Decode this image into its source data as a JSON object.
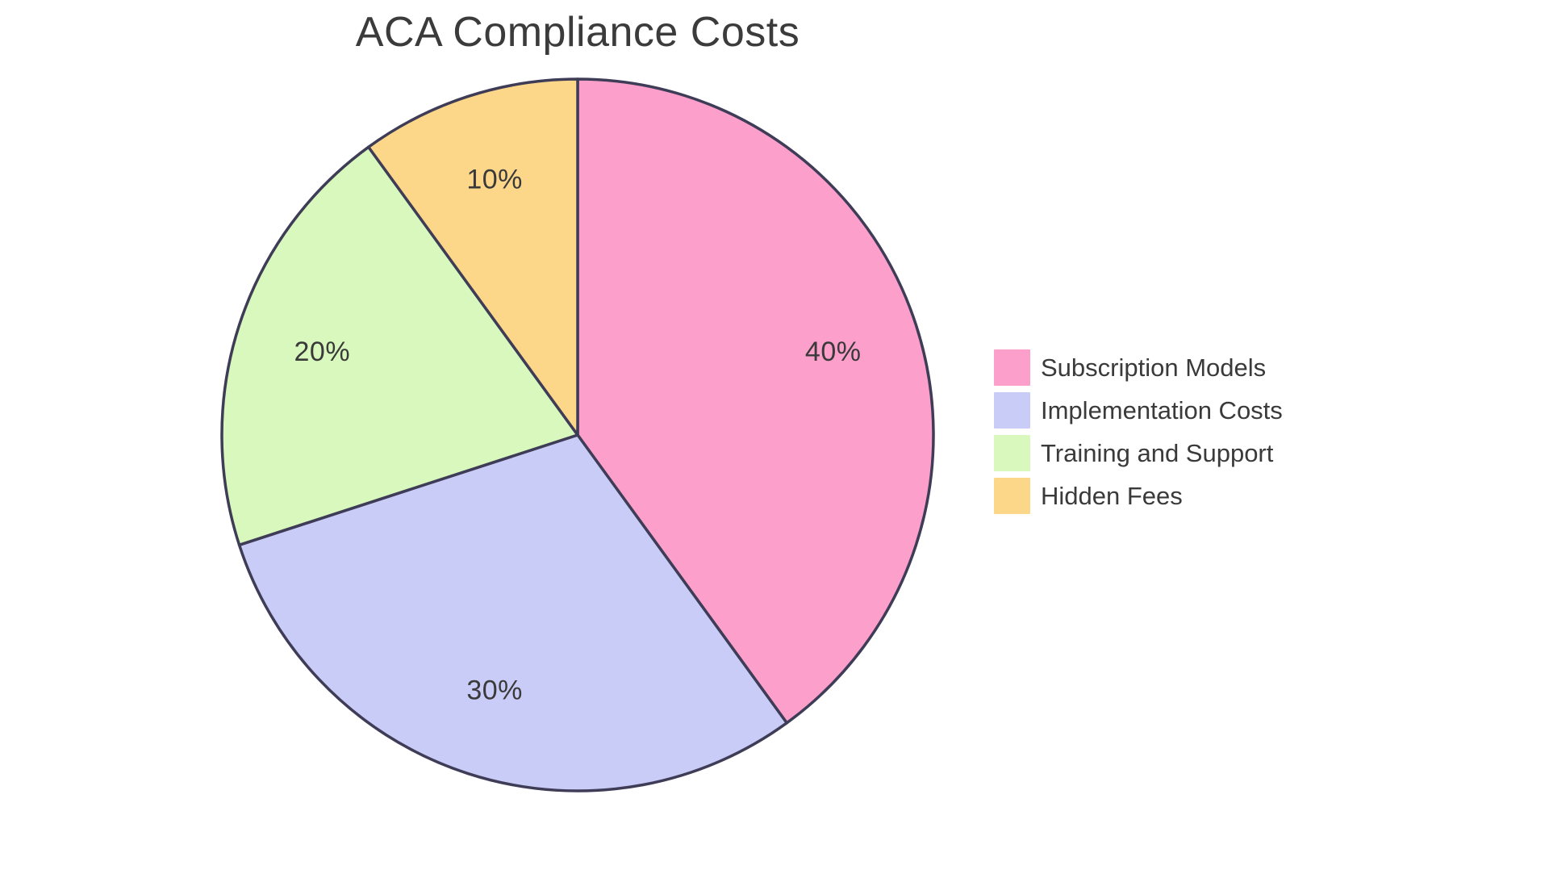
{
  "chart_data": {
    "type": "pie",
    "title": "ACA Compliance Costs",
    "legend_position": "right",
    "start_angle_deg": -90,
    "direction": "clockwise",
    "stroke_color": "#3e3c56",
    "label_color": "#3a3a3a",
    "title_color": "#3b3b3b",
    "background_color": "#ffffff",
    "slices": [
      {
        "label": "Subscription Models",
        "value": 40,
        "pct_label": "40%",
        "color": "#fc9fcb"
      },
      {
        "label": "Implementation Costs",
        "value": 30,
        "pct_label": "30%",
        "color": "#c9ccf7"
      },
      {
        "label": "Training and Support",
        "value": 20,
        "pct_label": "20%",
        "color": "#d8f8bd"
      },
      {
        "label": "Hidden Fees",
        "value": 10,
        "pct_label": "10%",
        "color": "#fcd78a"
      }
    ]
  }
}
